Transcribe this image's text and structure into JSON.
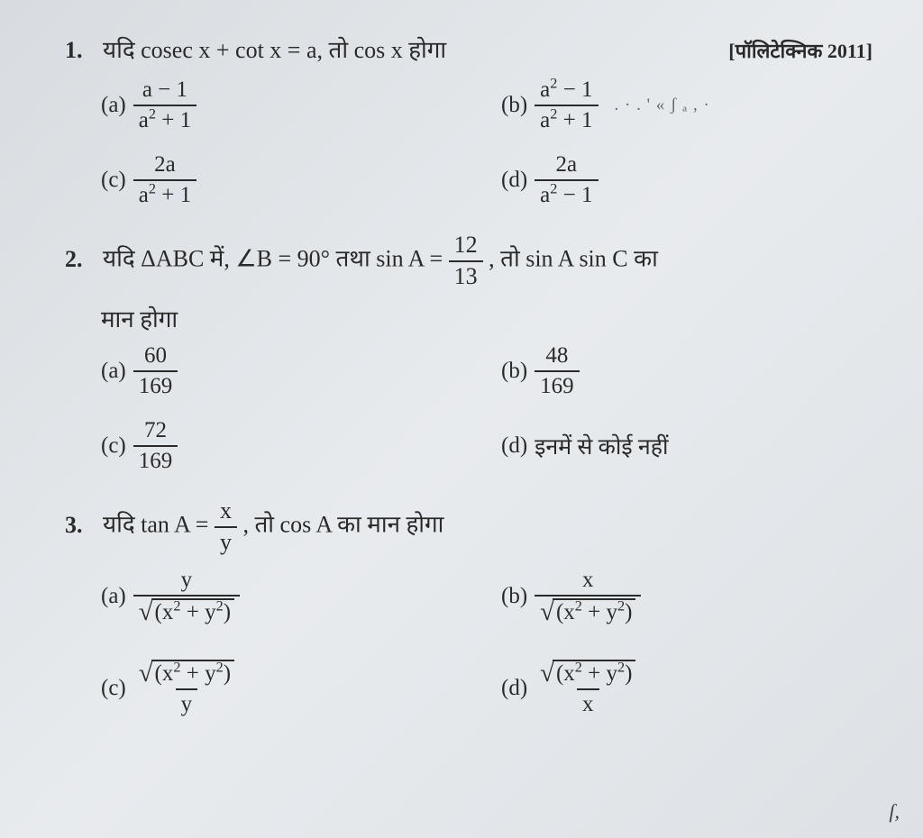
{
  "q1": {
    "number": "1.",
    "text_pre": "यदि ",
    "expr_lhs": "cosec x + cot x = a,",
    "text_mid": " तो ",
    "expr_q": "cos x",
    "text_post": " होगा",
    "tag": "[पॉलिटेक्निक 2011]",
    "opts": {
      "a": {
        "label": "(a)",
        "num": "a − 1",
        "den_l": "a",
        "den_exp": "2",
        "den_r": " + 1"
      },
      "b": {
        "label": "(b)",
        "num_l": "a",
        "num_exp": "2",
        "num_r": " − 1",
        "den_l": "a",
        "den_exp": "2",
        "den_r": " + 1",
        "extra": ". · . ' « ʃ ₐ  , · "
      },
      "c": {
        "label": "(c)",
        "num": "2a",
        "den_l": "a",
        "den_exp": "2",
        "den_r": " + 1"
      },
      "d": {
        "label": "(d)",
        "num": "2a",
        "den_l": "a",
        "den_exp": "2",
        "den_r": " − 1"
      }
    }
  },
  "q2": {
    "number": "2.",
    "text_a": "यदि ΔABC में, ∠B = 90° तथा sin A = ",
    "frac_num": "12",
    "frac_den": "13",
    "text_b": ", तो sin A sin C का",
    "text_c": "मान होगा",
    "opts": {
      "a": {
        "label": "(a)",
        "num": "60",
        "den": "169"
      },
      "b": {
        "label": "(b)",
        "num": "48",
        "den": "169"
      },
      "c": {
        "label": "(c)",
        "num": "72",
        "den": "169"
      },
      "d": {
        "label": "(d)",
        "text": "इनमें से कोई नहीं"
      }
    }
  },
  "q3": {
    "number": "3.",
    "text_a": "यदि tan A = ",
    "frac_num": "x",
    "frac_den": "y",
    "text_b": ", तो cos A का मान होगा",
    "sqrt_body_l": "(x",
    "sqrt_exp": "2",
    "sqrt_body_m": " + y",
    "sqrt_body_r": ")",
    "opts": {
      "a": {
        "label": "(a)",
        "num": "y"
      },
      "b": {
        "label": "(b)",
        "num": "x"
      },
      "c": {
        "label": "(c)",
        "den": "y"
      },
      "d": {
        "label": "(d)",
        "den": "x"
      }
    }
  },
  "corner_mark": "ſ,"
}
